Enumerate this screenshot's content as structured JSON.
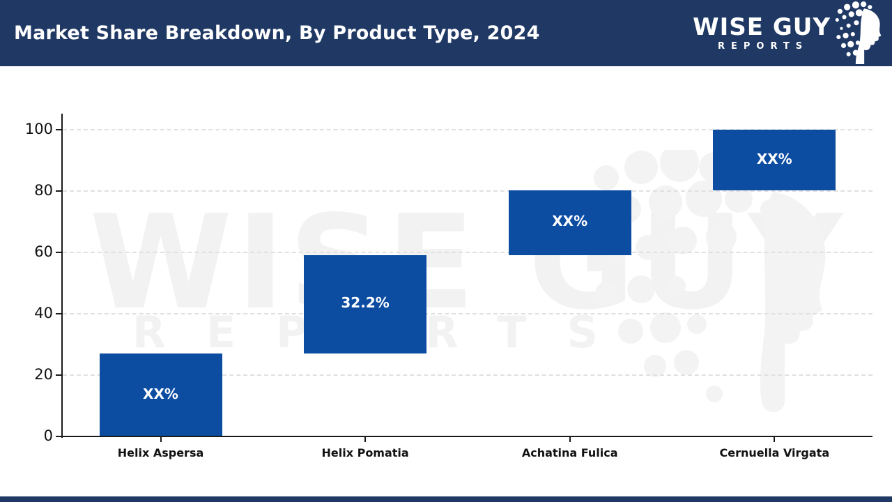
{
  "header": {
    "title": "Market Share Breakdown, By Product Type, 2024",
    "logo": {
      "line1": "WISE GUY",
      "line2": "REPORTS"
    }
  },
  "watermark": {
    "line1": "WISE GUY",
    "line2": "REPORTS"
  },
  "footer": {},
  "chart_data": {
    "type": "bar",
    "subtype": "waterfall-breakdown",
    "title": "Market Share Breakdown, By Product Type, 2024",
    "categories": [
      "Helix Aspersa",
      "Helix Pomatia",
      "Achatina Fulica",
      "Cernuella Virgata"
    ],
    "segments": [
      {
        "category": "Helix Aspersa",
        "start": 0,
        "end": 27,
        "label": "XX%"
      },
      {
        "category": "Helix Pomatia",
        "start": 27,
        "end": 59.2,
        "label": "32.2%",
        "value": 32.2
      },
      {
        "category": "Achatina Fulica",
        "start": 59.2,
        "end": 80.2,
        "label": "XX%"
      },
      {
        "category": "Cernuella Virgata",
        "start": 80.2,
        "end": 100,
        "label": "XX%"
      }
    ],
    "yticks": [
      0,
      20,
      40,
      60,
      80,
      100
    ],
    "ylim": [
      0,
      100
    ],
    "xlabel": "",
    "ylabel": "",
    "grid": "dashed-horizontal",
    "legend": "none",
    "colors": {
      "bar": "#0c4da2",
      "bar_label": "#ffffff",
      "header_bg": "#1f3864",
      "footer_bg": "#1f3864",
      "axis": "#1a1a1a",
      "gridline": "#e0e0e0",
      "watermark": "#f2f2f2"
    }
  }
}
